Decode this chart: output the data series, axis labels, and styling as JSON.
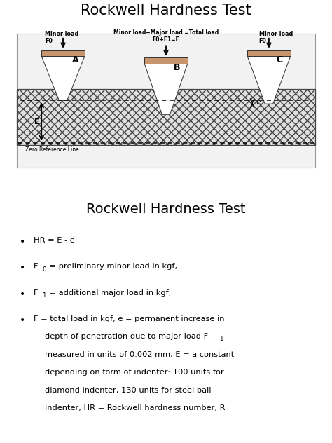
{
  "title_top": "Rockwell Hardness Test",
  "title_bottom": "Rockwell Hardness Test",
  "bg_color": "#ffffff",
  "indenter_top_color": "#c8956c",
  "label_A": "A",
  "label_B": "B",
  "label_C": "C",
  "label_E": "E",
  "label_e": "e",
  "text_minor_load_left": "Minor load\nF0",
  "text_center": "Minor load+Major load =Total load\nF0+F1=F",
  "text_minor_load_right": "Minor load\nF0",
  "text_zero_ref": "Zero Reference Line",
  "bullet1": "HR = E - e",
  "bullet2_pre": "F",
  "bullet2_sub": "0",
  "bullet2_post": " = preliminary minor load in kgf,",
  "bullet3_pre": "F",
  "bullet3_sub": "1",
  "bullet3_post": " = additional major load in kgf,",
  "bullet4_line1": "F = total load in kgf, e = permanent increase in",
  "bullet4_line2": "depth of penetration due to major load F",
  "bullet4_line2_sub": "1",
  "bullet4_line3": "measured in units of 0.002 mm, E = a constant",
  "bullet4_line4": "depending on form of indenter: 100 units for",
  "bullet4_line5": "diamond indenter, 130 units for steel ball",
  "bullet4_line6": "indenter, HR = Rockwell hardness number, R"
}
